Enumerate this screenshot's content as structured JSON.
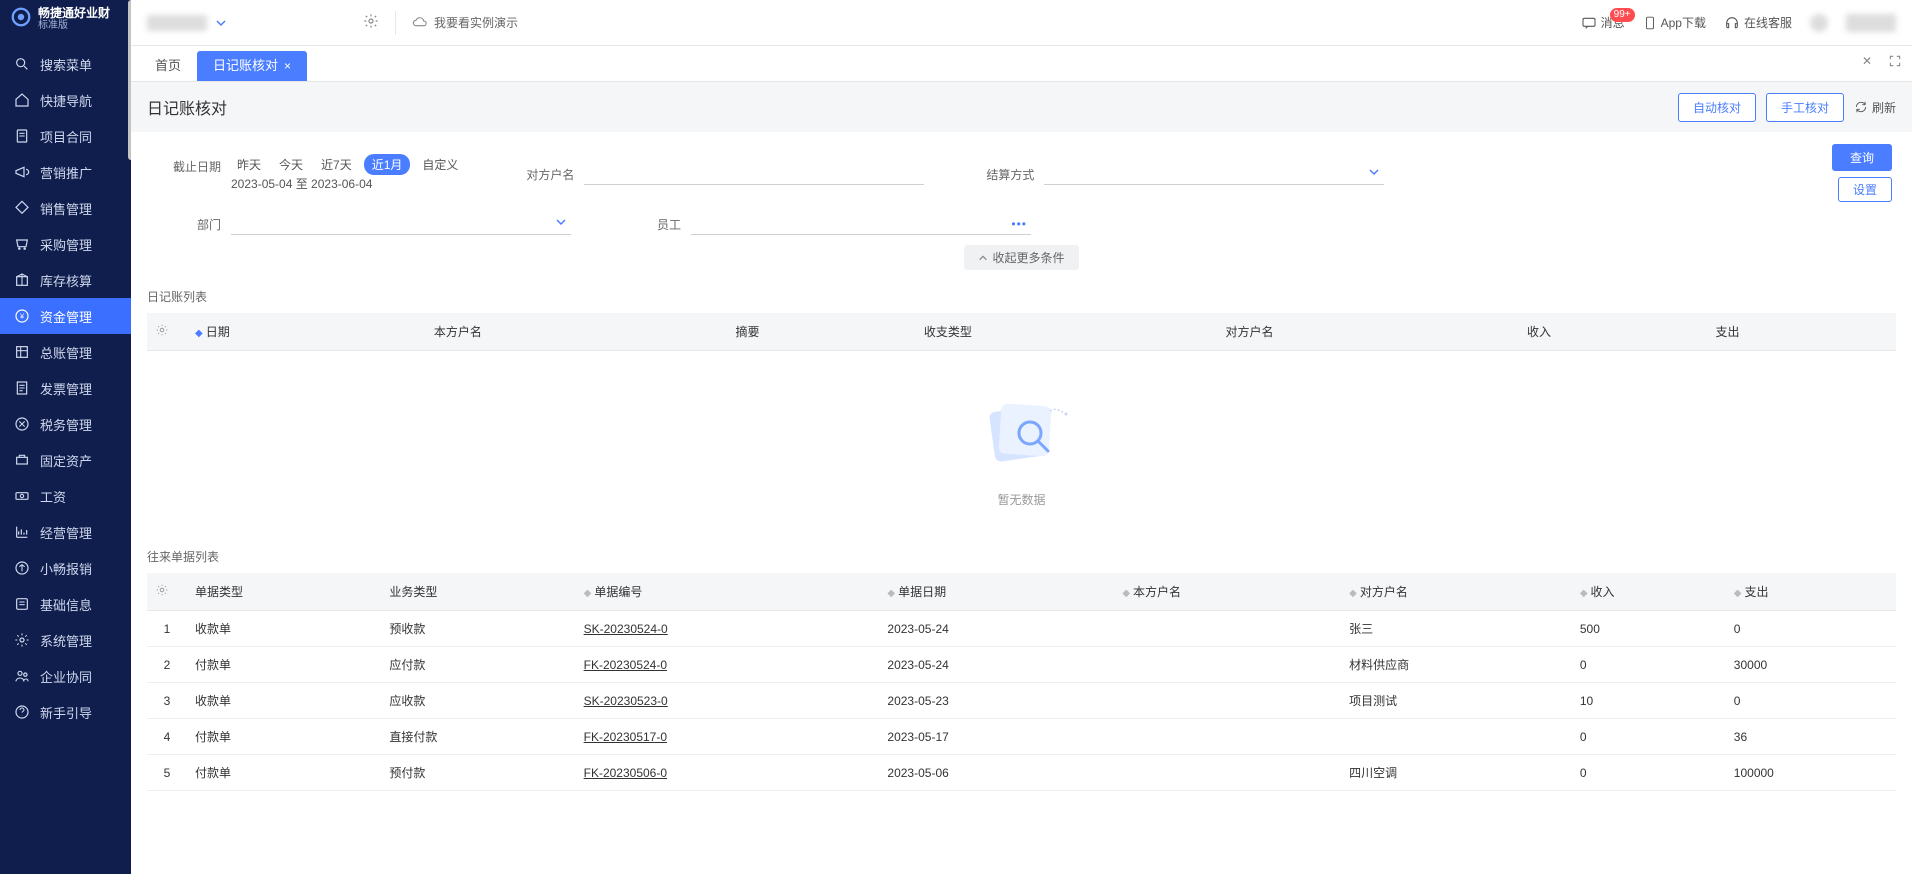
{
  "brand": {
    "title": "畅捷通好业财",
    "subtitle": "标准版"
  },
  "sidebar": {
    "items": [
      {
        "label": "搜索菜单",
        "icon": "search"
      },
      {
        "label": "快捷导航",
        "icon": "home"
      },
      {
        "label": "项目合同",
        "icon": "doc"
      },
      {
        "label": "营销推广",
        "icon": "megaphone"
      },
      {
        "label": "销售管理",
        "icon": "tag"
      },
      {
        "label": "采购管理",
        "icon": "cart"
      },
      {
        "label": "库存核算",
        "icon": "box"
      },
      {
        "label": "资金管理",
        "icon": "money",
        "active": true
      },
      {
        "label": "总账管理",
        "icon": "ledger"
      },
      {
        "label": "发票管理",
        "icon": "invoice"
      },
      {
        "label": "税务管理",
        "icon": "tax"
      },
      {
        "label": "固定资产",
        "icon": "asset"
      },
      {
        "label": "工资",
        "icon": "salary"
      },
      {
        "label": "经营管理",
        "icon": "chart"
      },
      {
        "label": "小畅报销",
        "icon": "reimburse"
      },
      {
        "label": "基础信息",
        "icon": "info"
      },
      {
        "label": "系统管理",
        "icon": "gear"
      },
      {
        "label": "企业协同",
        "icon": "team"
      },
      {
        "label": "新手引导",
        "icon": "guide"
      }
    ]
  },
  "topbar": {
    "demo_link": "我要看实例演示",
    "messages": "消息",
    "badge": "99+",
    "app_download": "App下载",
    "online_service": "在线客服"
  },
  "tabs": {
    "home": "首页",
    "current": "日记账核对"
  },
  "page": {
    "title": "日记账核对",
    "auto_check": "自动核对",
    "manual_check": "手工核对",
    "refresh": "刷新"
  },
  "filters": {
    "cutoff_label": "截止日期",
    "date_tabs": {
      "yesterday": "昨天",
      "today": "今天",
      "last7": "近7天",
      "last1m": "近1月",
      "custom": "自定义"
    },
    "date_range": "2023-05-04 至 2023-06-04",
    "counterparty_label": "对方户名",
    "settlement_label": "结算方式",
    "dept_label": "部门",
    "employee_label": "员工",
    "collapse": "收起更多条件",
    "search": "查询",
    "settings": "设置"
  },
  "section1": {
    "title": "日记账列表",
    "columns": {
      "date": "日期",
      "our_name": "本方户名",
      "summary": "摘要",
      "io_type": "收支类型",
      "their_name": "对方户名",
      "income": "收入",
      "expense": "支出"
    },
    "empty": "暂无数据"
  },
  "section2": {
    "title": "往来单据列表",
    "columns": {
      "doc_type": "单据类型",
      "biz_type": "业务类型",
      "doc_no": "单据编号",
      "doc_date": "单据日期",
      "our_name": "本方户名",
      "their_name": "对方户名",
      "income": "收入",
      "expense": "支出"
    },
    "rows": [
      {
        "idx": "1",
        "doc_type": "收款单",
        "biz_type": "预收款",
        "doc_no": "SK-20230524-0",
        "doc_date": "2023-05-24",
        "our_name": "",
        "their_name": "张三",
        "income": "500",
        "expense": "0"
      },
      {
        "idx": "2",
        "doc_type": "付款单",
        "biz_type": "应付款",
        "doc_no": "FK-20230524-0",
        "doc_date": "2023-05-24",
        "our_name": "",
        "their_name": "材料供应商",
        "income": "0",
        "expense": "30000"
      },
      {
        "idx": "3",
        "doc_type": "收款单",
        "biz_type": "应收款",
        "doc_no": "SK-20230523-0",
        "doc_date": "2023-05-23",
        "our_name": "",
        "their_name": "项目测试",
        "income": "10",
        "expense": "0"
      },
      {
        "idx": "4",
        "doc_type": "付款单",
        "biz_type": "直接付款",
        "doc_no": "FK-20230517-0",
        "doc_date": "2023-05-17",
        "our_name": "",
        "their_name": "",
        "income": "0",
        "expense": "36"
      },
      {
        "idx": "5",
        "doc_type": "付款单",
        "biz_type": "预付款",
        "doc_no": "FK-20230506-0",
        "doc_date": "2023-05-06",
        "our_name": "",
        "their_name": "四川空调",
        "income": "0",
        "expense": "100000"
      }
    ]
  },
  "colors": {
    "sidebar_bg": "#0f1e4d",
    "sidebar_active": "#3a6fff",
    "primary": "#4a7dff",
    "header_bg": "#f5f6f8",
    "badge": "#ff4d4f"
  }
}
